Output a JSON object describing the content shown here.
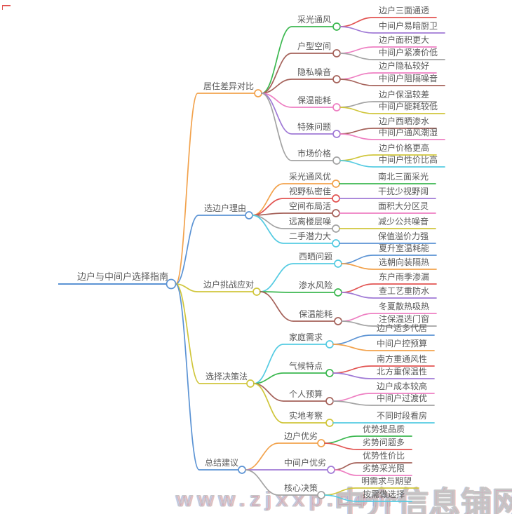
{
  "palette": {
    "blue": "#5b93d4",
    "orange": "#f2a24c",
    "green": "#3cb850",
    "brown": "#a5625a",
    "pink": "#ee7fc2",
    "purple": "#a07ad6",
    "gray": "#a3a3a3",
    "yellow": "#d0c63c",
    "cyan": "#55cbe2",
    "red": "#e25452",
    "text": "#595959",
    "watermark": "#c6c6c6"
  },
  "watermark": {
    "url_text": "www.zjxxp.com",
    "site_text": "中介信息铺网"
  },
  "mindmap": {
    "root": {
      "label": "边户与中间户选择指南",
      "color": "blue",
      "children": [
        {
          "label": "居住差异对比",
          "color": "orange",
          "children": [
            {
              "label": "采光通风",
              "color": "green",
              "children": [
                {
                  "label": "边户三面通透",
                  "color": "red"
                },
                {
                  "label": "中间户易暗厨卫",
                  "color": "purple"
                }
              ]
            },
            {
              "label": "户型空间",
              "color": "brown",
              "children": [
                {
                  "label": "边户面积更大",
                  "color": "pink"
                },
                {
                  "label": "中间户紧凑价低",
                  "color": "gray"
                }
              ]
            },
            {
              "label": "隐私噪音",
              "color": "brown",
              "children": [
                {
                  "label": "边户隐私较好",
                  "color": "pink"
                },
                {
                  "label": "中间户阻隔噪音",
                  "color": "brown"
                }
              ]
            },
            {
              "label": "保温能耗",
              "color": "pink",
              "children": [
                {
                  "label": "边户保温较差",
                  "color": "gray"
                },
                {
                  "label": "中间户能耗较低",
                  "color": "yellow"
                }
              ]
            },
            {
              "label": "特殊问题",
              "color": "purple",
              "children": [
                {
                  "label": "边户西晒渗水",
                  "color": "brown"
                },
                {
                  "label": "中间户通风潮湿",
                  "color": "pink"
                }
              ]
            },
            {
              "label": "市场价格",
              "color": "gray",
              "children": [
                {
                  "label": "边户价格更高",
                  "color": "yellow"
                },
                {
                  "label": "中间户性价比高",
                  "color": "cyan"
                }
              ]
            }
          ]
        },
        {
          "label": "选边户理由",
          "color": "blue",
          "children": [
            {
              "label": "采光通风优",
              "color": "orange",
              "children": [
                {
                  "label": "南北三面采光",
                  "color": "green"
                }
              ]
            },
            {
              "label": "视野私密佳",
              "color": "red",
              "children": [
                {
                  "label": "干扰少视野阔",
                  "color": "purple"
                }
              ]
            },
            {
              "label": "空间布局活",
              "color": "brown",
              "children": [
                {
                  "label": "面积大分区灵",
                  "color": "pink"
                }
              ]
            },
            {
              "label": "远离楼层噪",
              "color": "gray",
              "children": [
                {
                  "label": "减少公共噪音",
                  "color": "yellow"
                }
              ]
            },
            {
              "label": "二手潜力大",
              "color": "cyan",
              "children": [
                {
                  "label": "保值溢价力强",
                  "color": "blue"
                }
              ]
            }
          ]
        },
        {
          "label": "边户挑战应对",
          "color": "yellow",
          "children": [
            {
              "label": "西晒问题",
              "color": "cyan",
              "children": [
                {
                  "label": "夏升室温耗能",
                  "color": "blue"
                },
                {
                  "label": "选朝向装隔热",
                  "color": "orange"
                }
              ]
            },
            {
              "label": "渗水风险",
              "color": "green",
              "children": [
                {
                  "label": "东户雨季渗漏",
                  "color": "red"
                },
                {
                  "label": "查工艺重防水",
                  "color": "purple"
                }
              ]
            },
            {
              "label": "保温能耗",
              "color": "brown",
              "children": [
                {
                  "label": "冬夏散热吸热",
                  "color": "pink"
                },
                {
                  "label": "注保温选门窗",
                  "color": "gray"
                }
              ]
            }
          ]
        },
        {
          "label": "选择决策法",
          "color": "yellow",
          "children": [
            {
              "label": "家庭需求",
              "color": "cyan",
              "children": [
                {
                  "label": "边户适多代居",
                  "color": "blue"
                },
                {
                  "label": "中间户控预算",
                  "color": "orange"
                }
              ]
            },
            {
              "label": "气候特点",
              "color": "green",
              "children": [
                {
                  "label": "南方重通风性",
                  "color": "red"
                },
                {
                  "label": "北方重保温性",
                  "color": "purple"
                }
              ]
            },
            {
              "label": "个人预算",
              "color": "brown",
              "children": [
                {
                  "label": "边户成本较高",
                  "color": "pink"
                },
                {
                  "label": "中间户过渡优",
                  "color": "gray"
                }
              ]
            },
            {
              "label": "实地考察",
              "color": "yellow",
              "children": [
                {
                  "label": "不同时段看房",
                  "color": "cyan"
                }
              ]
            }
          ]
        },
        {
          "label": "总结建议",
          "color": "blue",
          "children": [
            {
              "label": "边户优劣",
              "color": "orange",
              "children": [
                {
                  "label": "优势提品质",
                  "color": "green"
                },
                {
                  "label": "劣势问题多",
                  "color": "red"
                }
              ]
            },
            {
              "label": "中间户优劣",
              "color": "purple",
              "children": [
                {
                  "label": "优势性价比",
                  "color": "brown"
                },
                {
                  "label": "劣势采光限",
                  "color": "pink"
                }
              ]
            },
            {
              "label": "核心决策",
              "color": "gray",
              "children": [
                {
                  "label": "明需求与期望",
                  "color": "yellow"
                },
                {
                  "label": "按需做选择",
                  "color": "cyan"
                }
              ]
            }
          ]
        }
      ]
    }
  }
}
